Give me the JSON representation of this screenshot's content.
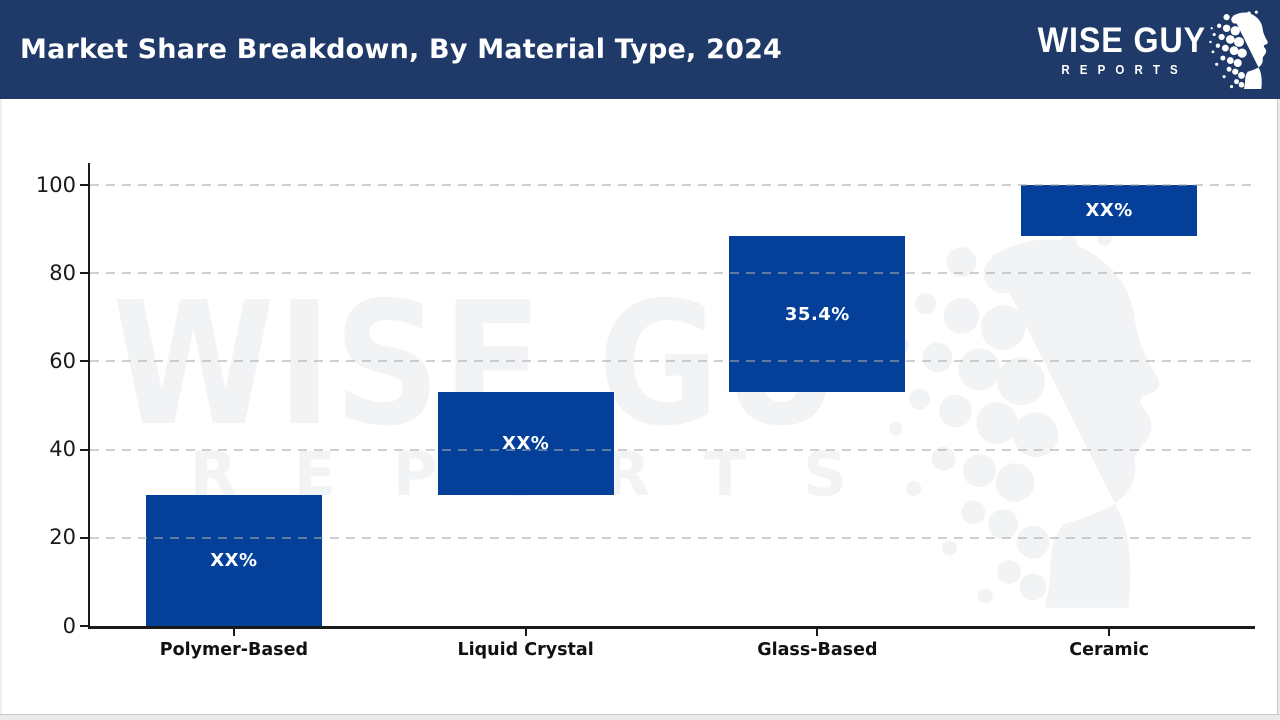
{
  "header": {
    "title": "Market Share Breakdown, By Material Type, 2024",
    "brand": {
      "line1": "WISE GUY",
      "line2": "REPORTS",
      "head_icon": "dotted-head-profile"
    }
  },
  "watermark": {
    "line1": "WISE GU",
    "line2": "REPORTS",
    "head_icon": "dotted-head-profile"
  },
  "chart_data": {
    "type": "bar",
    "variant": "floating segment / waterfall style, one segment per category",
    "title": "Market Share Breakdown, By Material Type, 2024",
    "categories": [
      "Polymer-Based",
      "Liquid Crystal",
      "Glass-Based",
      "Ceramic"
    ],
    "series": [
      {
        "name": "Market share (%)",
        "segments": [
          {
            "category": "Polymer-Based",
            "from": 0,
            "to": 29.6,
            "value_label": "XX%"
          },
          {
            "category": "Liquid Crystal",
            "from": 29.6,
            "to": 53.0,
            "value_label": "XX%"
          },
          {
            "category": "Glass-Based",
            "from": 53.0,
            "to": 88.4,
            "value_label": "35.4%"
          },
          {
            "category": "Ceramic",
            "from": 88.4,
            "to": 100.0,
            "value_label": "XX%"
          }
        ]
      }
    ],
    "xlabel": "",
    "ylabel": "",
    "ylim": [
      0,
      105
    ],
    "yticks": [
      0,
      20,
      40,
      60,
      80,
      100
    ],
    "grid": {
      "horizontal": true,
      "style": "dashed",
      "drawn_above_bars": true
    },
    "legend": "none"
  },
  "colors": {
    "header_bg": "#1f3a68",
    "bar_fill": "#04409a",
    "bar_label": "#ffffff",
    "axis": "#1a1a1a",
    "watermark": "#f2f3f5",
    "page_bg": "#ffffff"
  }
}
